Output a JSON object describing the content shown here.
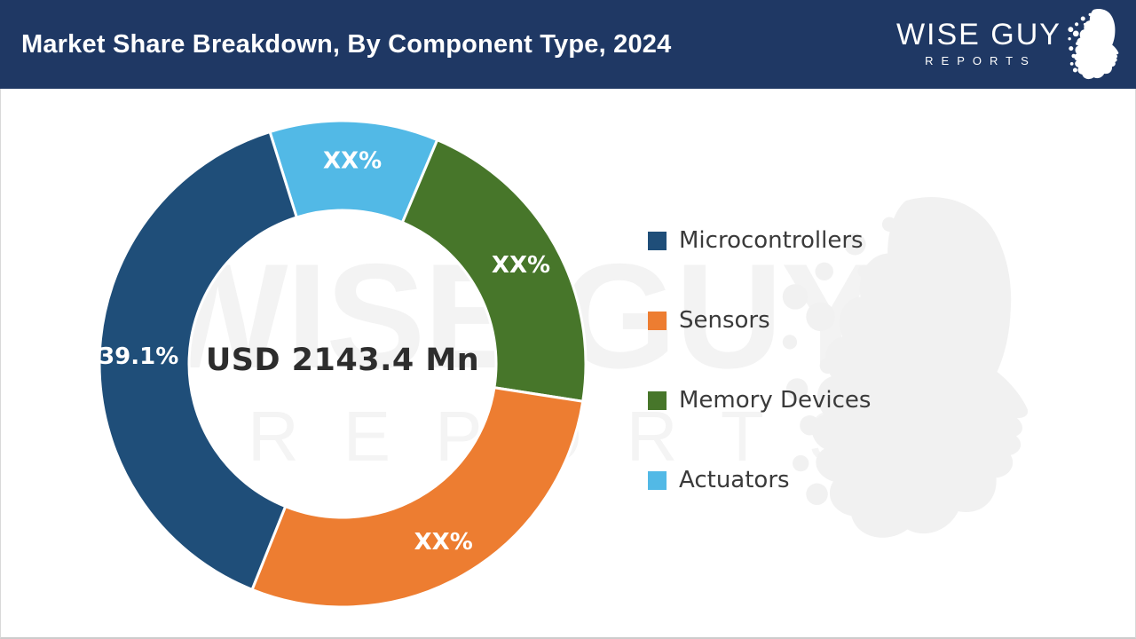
{
  "header": {
    "title": "Market Share Breakdown, By Component Type, 2024",
    "logo": {
      "line1": "WISE GUY",
      "line2": "REPORTS"
    }
  },
  "watermark": {
    "line1": "WISE GUY",
    "line2": "REPORTS"
  },
  "colors": {
    "header_bg": "#1f3864",
    "microcontrollers": "#1f4e79",
    "sensors": "#ed7d31",
    "memory_devices": "#47762a",
    "actuators": "#52b9e6",
    "watermark_gray": "#f2f2f2"
  },
  "chart_data": {
    "type": "pie",
    "donut": true,
    "title": "Market Share Breakdown, By Component Type, 2024",
    "center_text": "USD 2143.4 Mn",
    "start_angle_deg": -17.4,
    "direction": "clockwise",
    "series": [
      {
        "name": "Actuators",
        "value_pct": 11.2,
        "label": "XX%",
        "color": "#52b9e6"
      },
      {
        "name": "Memory Devices",
        "value_pct": 21.1,
        "label": "XX%",
        "color": "#47762a"
      },
      {
        "name": "Sensors",
        "value_pct": 28.6,
        "label": "XX%",
        "color": "#ed7d31"
      },
      {
        "name": "Microcontrollers",
        "value_pct": 39.1,
        "label": "39.1%",
        "color": "#1f4e79"
      }
    ],
    "legend_order": [
      "Microcontrollers",
      "Sensors",
      "Memory Devices",
      "Actuators"
    ],
    "legend_position": "right"
  }
}
